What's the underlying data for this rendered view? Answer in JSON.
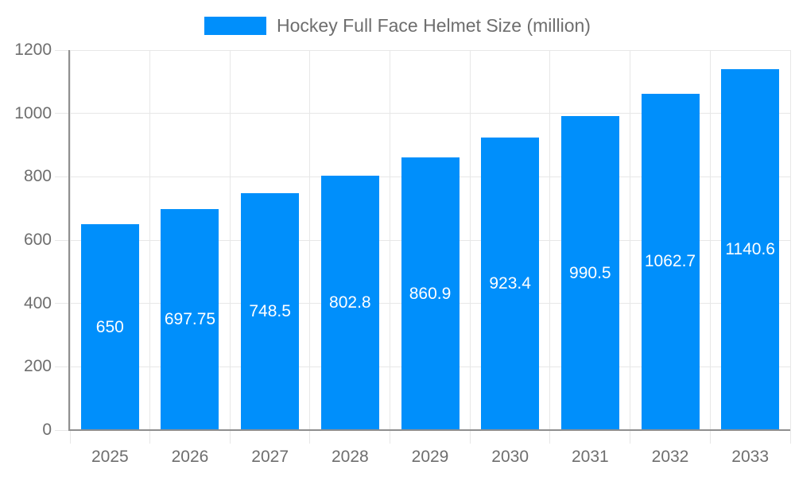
{
  "chart_data": {
    "type": "bar",
    "title": "Hockey Full Face Helmet Size (million)",
    "legend": [
      "Hockey Full Face Helmet Size (million)"
    ],
    "legend_position": "top-center",
    "categories": [
      "2025",
      "2026",
      "2027",
      "2028",
      "2029",
      "2030",
      "2031",
      "2032",
      "2033"
    ],
    "series": [
      {
        "name": "Hockey Full Face Helmet Size (million)",
        "values": [
          650,
          697.75,
          748.5,
          802.8,
          860.9,
          923.4,
          990.5,
          1062.7,
          1140.6
        ]
      }
    ],
    "value_labels": [
      "650",
      "697.75",
      "748.5",
      "802.8",
      "860.9",
      "923.4",
      "990.5",
      "1062.7",
      "1140.6"
    ],
    "xlabel": "",
    "ylabel": "",
    "ylim": [
      0,
      1200
    ],
    "ytick_step": 200,
    "yticks": [
      "0",
      "200",
      "400",
      "600",
      "800",
      "1000",
      "1200"
    ],
    "grid": true,
    "colors": {
      "bar": "#008FFB",
      "value_label": "#ffffff",
      "axis_line": "#8f8f8f",
      "gridline": "#e7e7e7",
      "axis_text": "#6e6e6e"
    }
  }
}
